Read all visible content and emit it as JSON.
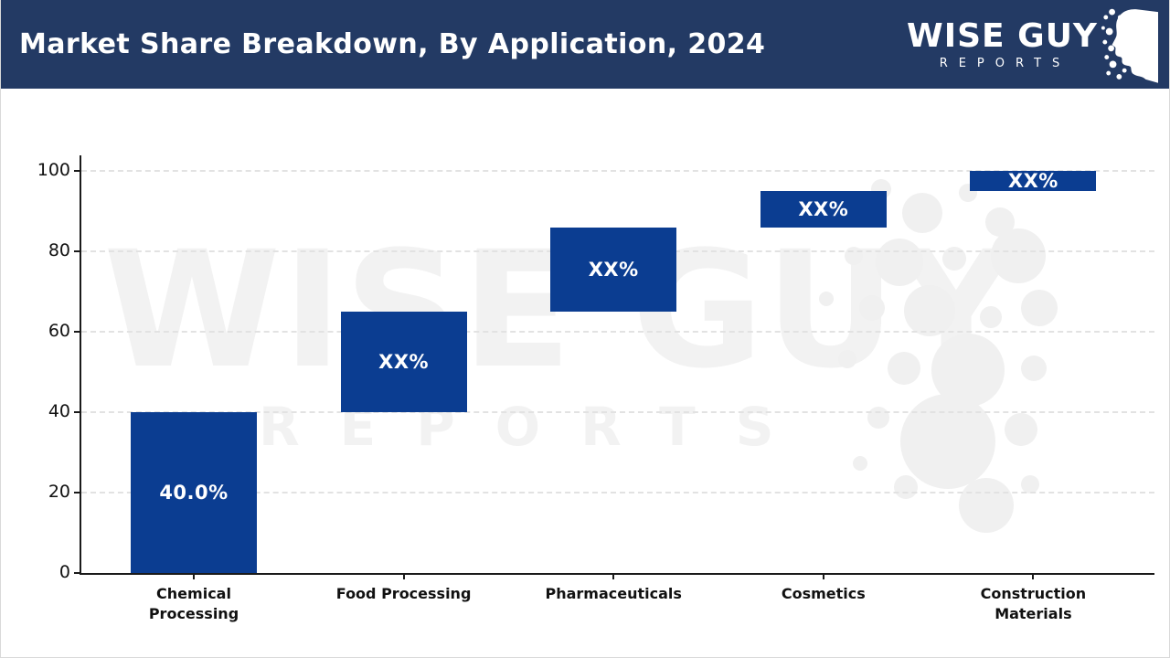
{
  "header": {
    "title": "Market Share Breakdown, By Application, 2024",
    "logo": {
      "name": "WISE GUY",
      "subtitle": "REPORTS"
    }
  },
  "watermark": {
    "line1": "WISE GUY",
    "line2": "REPORTS"
  },
  "chart_data": {
    "type": "bar",
    "variant": "waterfall",
    "title": "Market Share Breakdown, By Application, 2024",
    "categories": [
      "Chemical\nProcessing",
      "Food Processing",
      "Pharmaceuticals",
      "Cosmetics",
      "Construction\nMaterials"
    ],
    "segments": [
      {
        "category": "Chemical Processing",
        "start": 0,
        "end": 40,
        "value": 40,
        "label": "40.0%"
      },
      {
        "category": "Food Processing",
        "start": 40,
        "end": 65,
        "value": 25,
        "label": "XX%"
      },
      {
        "category": "Pharmaceuticals",
        "start": 65,
        "end": 86,
        "value": 21,
        "label": "XX%"
      },
      {
        "category": "Cosmetics",
        "start": 86,
        "end": 95,
        "value": 9,
        "label": "XX%"
      },
      {
        "category": "Construction Materials",
        "start": 95,
        "end": 100,
        "value": 5,
        "label": "XX%"
      }
    ],
    "xlabel": "",
    "ylabel": "",
    "yticks": [
      0,
      20,
      40,
      60,
      80,
      100
    ],
    "ylim": [
      0,
      105
    ],
    "grid": "horizontal-dashed",
    "legend": "none",
    "bar_color": "#0b3d91",
    "bar_label_color": "#ffffff"
  },
  "colors": {
    "header_bg": "#233a64",
    "bar": "#0b3d91",
    "grid": "#e2e2e2",
    "axis": "#1a1a1a",
    "watermark": "#f2f2f2",
    "background": "#ffffff"
  }
}
